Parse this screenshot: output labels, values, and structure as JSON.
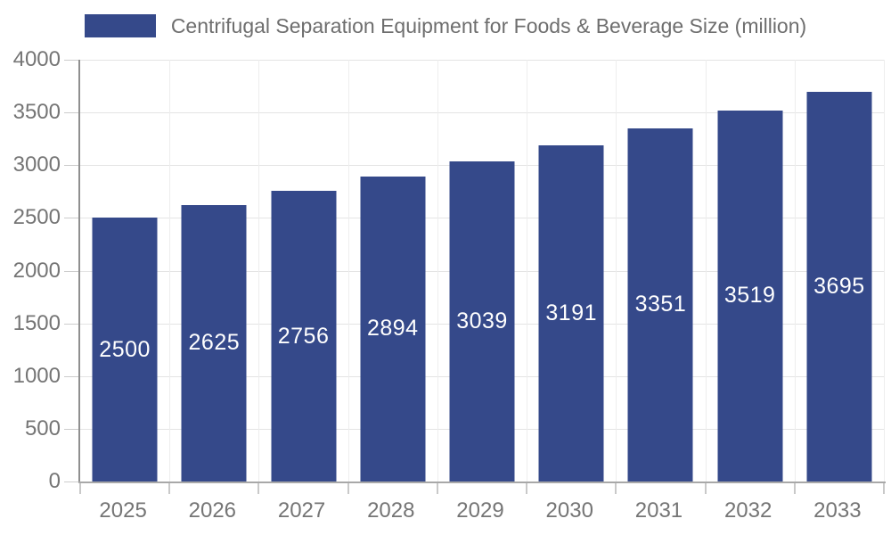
{
  "legend": {
    "label": "Centrifugal Separation Equipment for Foods & Beverage Size (million)"
  },
  "chart_data": {
    "type": "bar",
    "title": "Centrifugal Separation Equipment for Foods & Beverage Size (million)",
    "categories": [
      "2025",
      "2026",
      "2027",
      "2028",
      "2029",
      "2030",
      "2031",
      "2032",
      "2033"
    ],
    "values": [
      2500,
      2625,
      2756,
      2894,
      3039,
      3191,
      3351,
      3519,
      3695
    ],
    "xlabel": "",
    "ylabel": "",
    "ylim": [
      0,
      4000
    ],
    "y_ticks": [
      0,
      500,
      1000,
      1500,
      2000,
      2500,
      3000,
      3500,
      4000
    ],
    "grid": true,
    "legend_position": "top",
    "bar_label_position": "inside-middle",
    "colors": {
      "bar": "#35498A",
      "bar_label": "#FFFFFF",
      "axis_text": "#757575",
      "legend_text": "#6E6E6E",
      "h_gridline": "#E4E4E4",
      "v_gridline": "#EDEDED",
      "y_axis_line": "#8F8F8F",
      "x_axis_line": "#A8A8A8",
      "background": "#FFFFFF"
    }
  }
}
